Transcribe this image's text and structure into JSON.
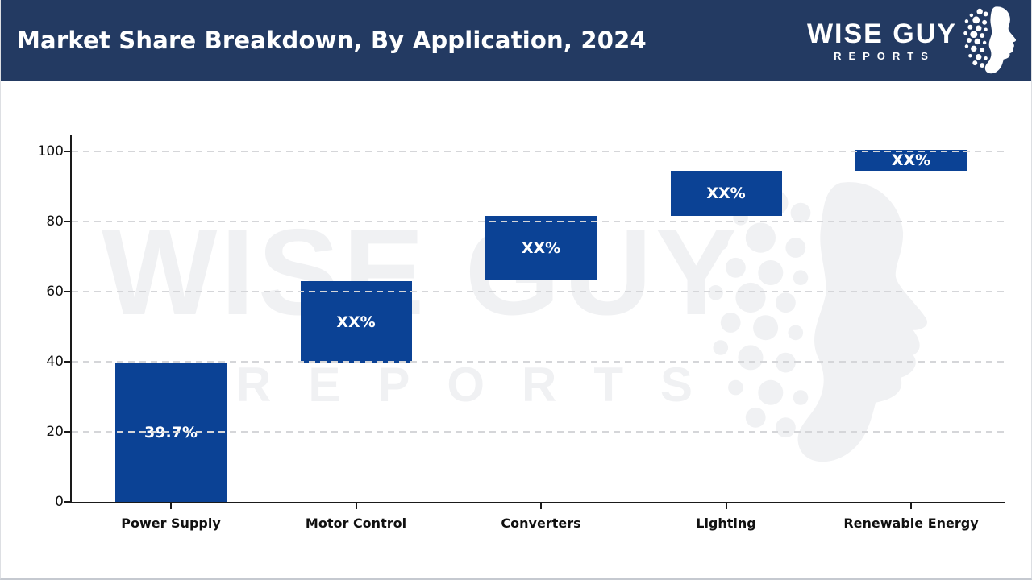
{
  "header": {
    "title": "Market Share Breakdown, By Application, 2024",
    "logo": {
      "line1": "WISE GUY",
      "line2": "REPORTS"
    }
  },
  "watermark": {
    "line1": "WISE GUY",
    "line2": "REPORTS"
  },
  "colors": {
    "header_bg": "#233a62",
    "bar": "#0b4295",
    "bar_label": "#ffffff",
    "grid": "#d5d6d9",
    "axis": "#1a1a1a",
    "watermark": "#f0f1f3"
  },
  "chart_data": {
    "type": "bar",
    "subtype": "waterfall",
    "title": "Market Share Breakdown, By Application, 2024",
    "xlabel": "",
    "ylabel": "",
    "ylim": [
      0,
      105
    ],
    "yticks": [
      0,
      20,
      40,
      60,
      80,
      100
    ],
    "grid": "horizontal dashed",
    "legend": "none",
    "categories": [
      "Power Supply",
      "Motor Control",
      "Converters",
      "Lighting",
      "Renewable Energy"
    ],
    "segments": [
      {
        "category": "Power Supply",
        "start": 0,
        "end": 39.7,
        "label": "39.7%"
      },
      {
        "category": "Motor Control",
        "start": 39.7,
        "end": 63.0,
        "label": "XX%"
      },
      {
        "category": "Converters",
        "start": 63.5,
        "end": 81.5,
        "label": "XX%"
      },
      {
        "category": "Lighting",
        "start": 81.5,
        "end": 94.5,
        "label": "XX%"
      },
      {
        "category": "Renewable Energy",
        "start": 94.5,
        "end": 100.4,
        "label": "XX%"
      }
    ]
  }
}
